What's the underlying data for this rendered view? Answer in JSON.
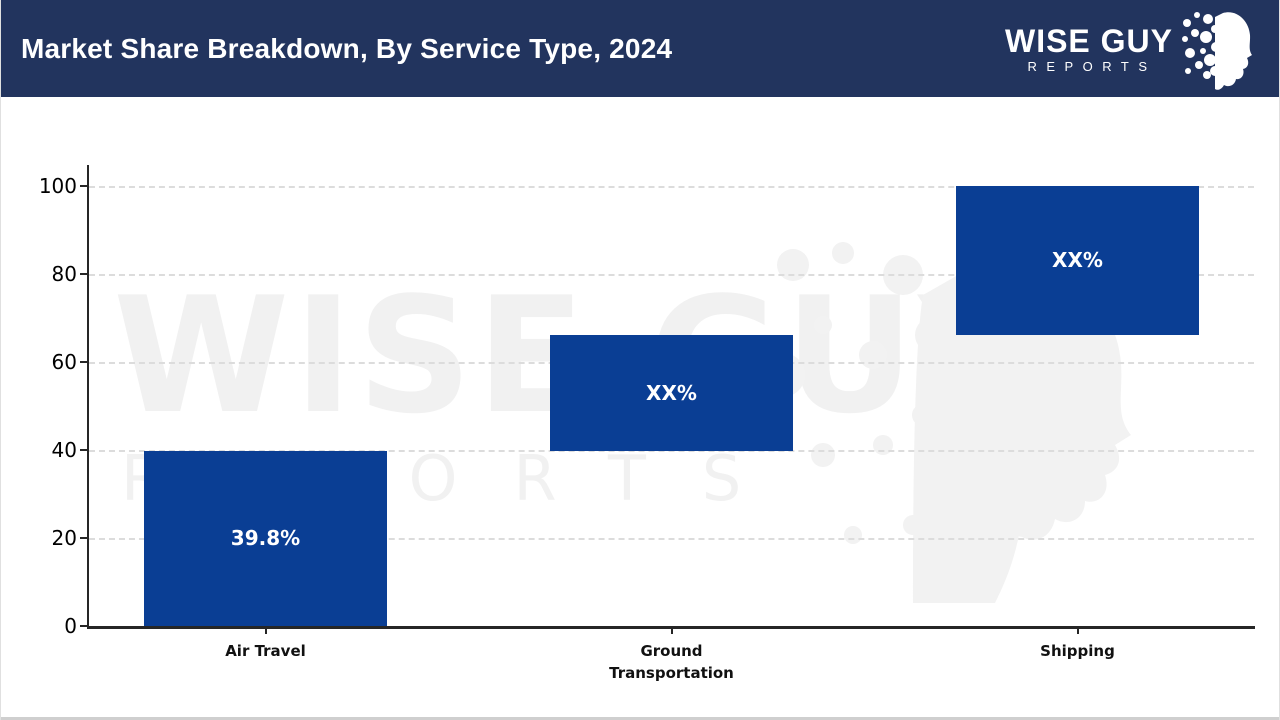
{
  "header": {
    "title": "Market Share Breakdown, By Service Type, 2024",
    "bg_color": "#22345e",
    "logo": {
      "line1": "WISE GUY",
      "line2": "REPORTS"
    }
  },
  "watermark": {
    "line1": "WISE GUY",
    "line2": "REPORTS"
  },
  "colors": {
    "bar": "#0a3e94",
    "bar_label": "#ffffff",
    "gridline": "#dcdcdc",
    "axis": "#262626",
    "watermark": "#f1f1f1"
  },
  "chart_data": {
    "type": "bar",
    "style": "waterfall",
    "title": "Market Share Breakdown, By Service Type, 2024",
    "categories": [
      "Air Travel",
      "Ground Transportation",
      "Shipping"
    ],
    "bars": [
      {
        "category": "Air Travel",
        "start": 0,
        "end": 39.8,
        "label": "39.8%"
      },
      {
        "category": "Ground Transportation",
        "start": 39.8,
        "end": 66.2,
        "label": "XX%"
      },
      {
        "category": "Shipping",
        "start": 66.2,
        "end": 100,
        "label": "XX%"
      }
    ],
    "yticks": [
      0,
      20,
      40,
      60,
      80,
      100
    ],
    "ylim": [
      0,
      100
    ],
    "xlabel": "",
    "ylabel": "",
    "grid": "horizontal-dashed",
    "legend": "none",
    "bar_color": "#0a3e94",
    "label_color": "#ffffff"
  }
}
